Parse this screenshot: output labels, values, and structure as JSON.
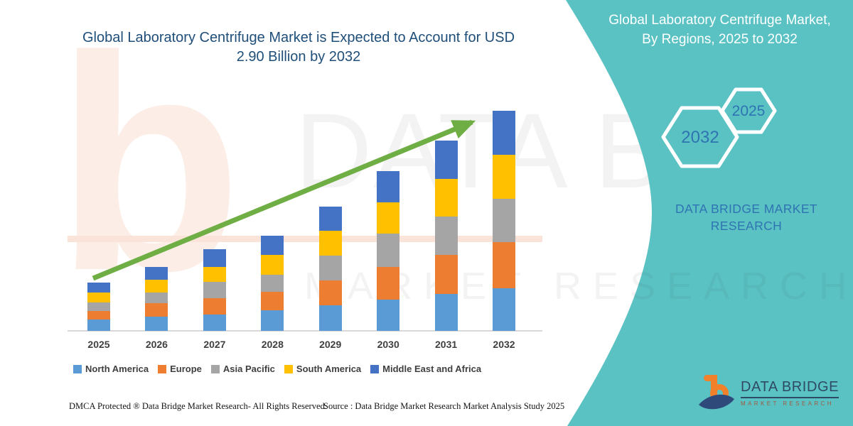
{
  "main_title": "Global Laboratory Centrifuge Market is Expected to Account for USD 2.90 Billion by 2032",
  "side_panel": {
    "title": "Global Laboratory Centrifuge Market, By Regions, 2025 to 2032",
    "hexagons": [
      {
        "label": "2032"
      },
      {
        "label": "2025"
      }
    ],
    "brand_caption": "DATA BRIDGE MARKET RESEARCH",
    "logo": {
      "name": "DATA BRIDGE",
      "tagline": "MARKET RESEARCH"
    }
  },
  "footer": {
    "dmca": "DMCA Protected ® Data Bridge Market Research- All Rights Reserved.",
    "source": "Source : Data Bridge Market Research Market Analysis Study 2025"
  },
  "watermarks": {
    "letter_b": "b",
    "row1": "DATA BRIDGE",
    "row2": "MARKET RESEARCH"
  },
  "colors": {
    "teal_panel": "#5BC2C4",
    "title_blue": "#1F4E79",
    "panel_blue_text": "#2F74B2",
    "arrow_green": "#6FAE44",
    "axis_text": "#3f3f3f",
    "logo_navy": "#2E4A66",
    "logo_orange": "#F0812A"
  },
  "chart_data": {
    "type": "bar",
    "stacked": true,
    "title": "Global Laboratory Centrifuge Market is Expected to Account for USD 2.90 Billion by 2032",
    "xlabel": "",
    "ylabel": "",
    "unit": "USD billion (values estimated from bar heights; 2032 total stated as USD 2.90 billion)",
    "categories": [
      "2025",
      "2026",
      "2027",
      "2028",
      "2029",
      "2030",
      "2031",
      "2032"
    ],
    "series": [
      {
        "name": "North America",
        "color": "#5B9BD5",
        "values": [
          0.15,
          0.19,
          0.21,
          0.27,
          0.34,
          0.41,
          0.48,
          0.56
        ]
      },
      {
        "name": "Europe",
        "color": "#ED7D31",
        "values": [
          0.11,
          0.18,
          0.21,
          0.24,
          0.33,
          0.43,
          0.51,
          0.61
        ]
      },
      {
        "name": "Asia Pacific",
        "color": "#A5A5A5",
        "values": [
          0.11,
          0.14,
          0.21,
          0.22,
          0.33,
          0.44,
          0.5,
          0.57
        ]
      },
      {
        "name": "South America",
        "color": "#FFC000",
        "values": [
          0.13,
          0.17,
          0.2,
          0.26,
          0.33,
          0.41,
          0.49,
          0.58
        ]
      },
      {
        "name": "Middle East and Africa",
        "color": "#4472C4",
        "values": [
          0.13,
          0.17,
          0.23,
          0.25,
          0.32,
          0.41,
          0.5,
          0.58
        ]
      }
    ],
    "totals": [
      0.63,
      0.85,
      1.06,
      1.24,
      1.65,
      2.1,
      2.48,
      2.9
    ],
    "ylim": [
      0,
      3.0
    ],
    "gridlines": false,
    "legend_position": "bottom",
    "trend_arrow": true
  }
}
